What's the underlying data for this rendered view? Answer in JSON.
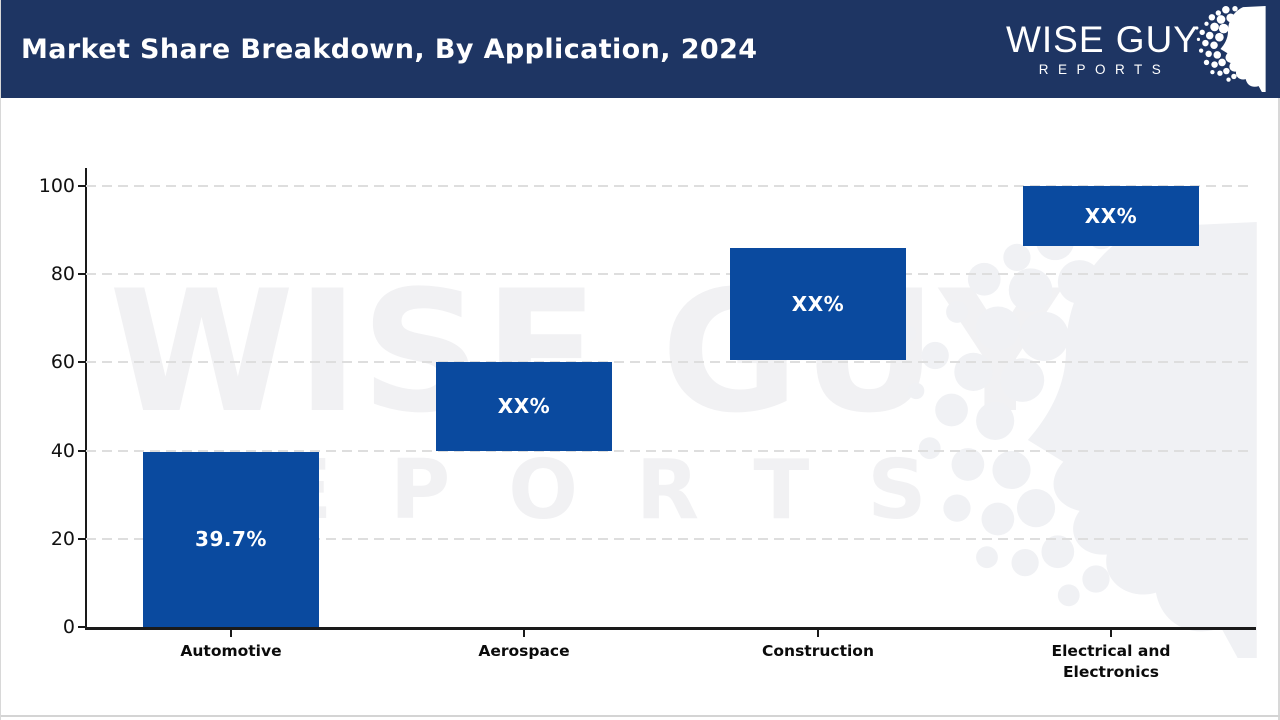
{
  "header": {
    "title": "Market Share Breakdown, By Application, 2024",
    "logo": {
      "line1": "WISE GUY",
      "line2": "REPORTS"
    },
    "bg_color": "#1e3563"
  },
  "watermark": {
    "line1": "WISE GUY",
    "line2": "REPORTS"
  },
  "chart_data": {
    "type": "bar",
    "variant": "floating-waterfall",
    "title": "Market Share Breakdown, By Application, 2024",
    "categories": [
      "Automotive",
      "Aerospace",
      "Construction",
      "Electrical and Electronics"
    ],
    "bars": [
      {
        "category": "Automotive",
        "start": 0,
        "end": 39.7,
        "value_label": "39.7%"
      },
      {
        "category": "Aerospace",
        "start": 40,
        "end": 60,
        "value_label": "XX%"
      },
      {
        "category": "Construction",
        "start": 60.5,
        "end": 86,
        "value_label": "XX%"
      },
      {
        "category": "Electrical and Electronics",
        "start": 86.5,
        "end": 100,
        "value_label": "XX%"
      }
    ],
    "y_ticks": [
      0,
      20,
      40,
      60,
      80,
      100
    ],
    "ylim": [
      0,
      105
    ],
    "xlabel": "",
    "ylabel": "",
    "bar_color": "#0a4a9f",
    "grid": "horizontal-dashed",
    "gridline_color": "#dedede",
    "legend": "none"
  }
}
